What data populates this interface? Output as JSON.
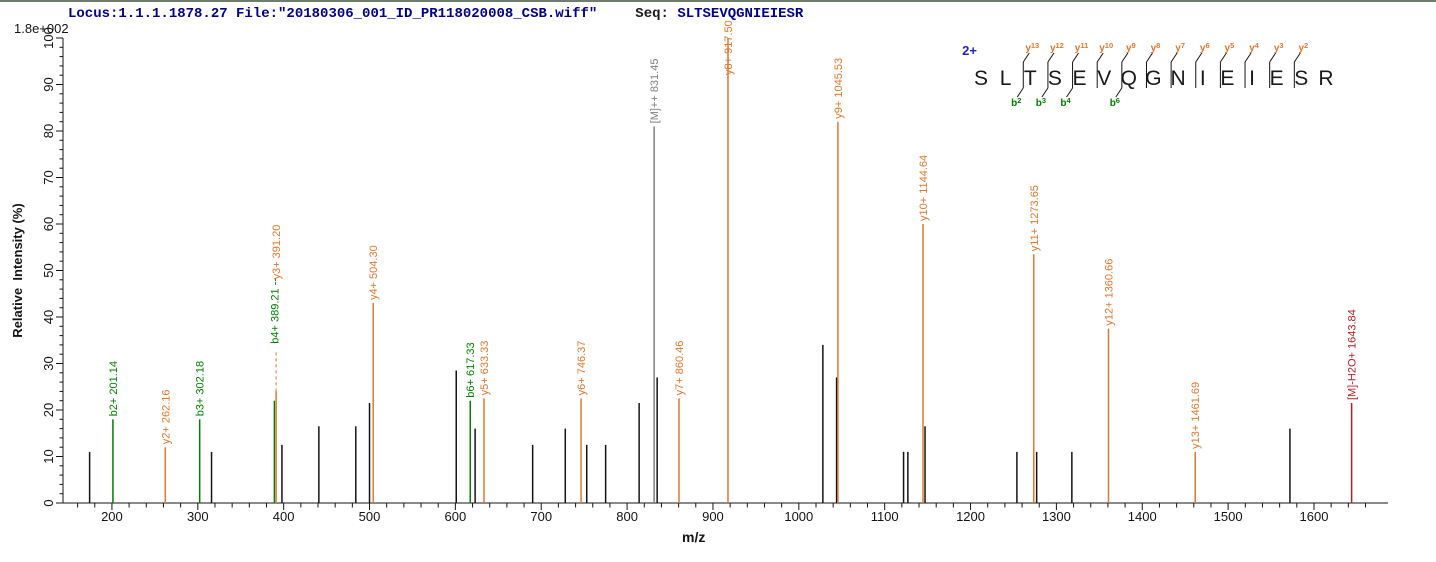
{
  "header": {
    "locus_file": "Locus:1.1.1.1878.27 File:\"20180306_001_ID_PR118020008_CSB.wiff\"",
    "seq_label": "Seq:",
    "sequence": "SLTSEVQGNIEIESR"
  },
  "colors": {
    "y": "#e2772e",
    "b": "#008000",
    "unassigned": "#141414",
    "precursor": "#7f7f7f",
    "neutral_loss": "#b22222",
    "axis": "#141414",
    "header_text": "#00008b",
    "charge": "#1f1fd0"
  },
  "chart_data": {
    "type": "bar",
    "subtype": "ms2-fragment-spectrum",
    "title": "",
    "x_axis": {
      "label": "m/z",
      "range": [
        143,
        1684
      ],
      "major_ticks": [
        200,
        300,
        400,
        500,
        600,
        700,
        800,
        900,
        1000,
        1100,
        1200,
        1300,
        1400,
        1500,
        1600
      ],
      "minor_step": 20,
      "minor_ticks_range": [
        160,
        1660
      ]
    },
    "y_axis": {
      "label": "Relative  Intensity (%)",
      "range": [
        0,
        100
      ],
      "major_ticks": [
        0,
        10,
        20,
        30,
        40,
        50,
        60,
        70,
        80,
        90,
        100
      ],
      "minor_step": 2,
      "scale_note": "1.8e+002"
    },
    "peaks": [
      {
        "mz": 174,
        "intensity": 11,
        "type": "unassigned"
      },
      {
        "mz": 201.14,
        "intensity": 18,
        "type": "b",
        "label": "b2+ 201.14"
      },
      {
        "mz": 262.16,
        "intensity": 12,
        "type": "y",
        "label": "y2+ 262.16"
      },
      {
        "mz": 302.18,
        "intensity": 18,
        "type": "b",
        "label": "b3+ 302.18"
      },
      {
        "mz": 316,
        "intensity": 11,
        "type": "unassigned"
      },
      {
        "mz": 389.21,
        "intensity": 22,
        "type": "b",
        "label": "b4+ 389.21 --",
        "label_offset": 57
      },
      {
        "mz": 391.2,
        "intensity": 24,
        "type": "y",
        "label": "y3+ 391.20",
        "label_offset": 112,
        "leader": [
          0,
          40
        ]
      },
      {
        "mz": 398,
        "intensity": 12.5,
        "type": "unassigned"
      },
      {
        "mz": 441,
        "intensity": 16.5,
        "type": "unassigned"
      },
      {
        "mz": 484,
        "intensity": 16.5,
        "type": "unassigned"
      },
      {
        "mz": 500,
        "intensity": 21.5,
        "type": "unassigned"
      },
      {
        "mz": 504.3,
        "intensity": 43,
        "type": "y",
        "label": "y4+ 504.30"
      },
      {
        "mz": 601,
        "intensity": 28.5,
        "type": "unassigned"
      },
      {
        "mz": 617.33,
        "intensity": 22,
        "type": "b",
        "label": "b6+ 617.33"
      },
      {
        "mz": 623,
        "intensity": 16,
        "type": "unassigned"
      },
      {
        "mz": 633.33,
        "intensity": 22.5,
        "type": "y",
        "label": "y5+ 633.33"
      },
      {
        "mz": 690,
        "intensity": 12.5,
        "type": "unassigned"
      },
      {
        "mz": 728,
        "intensity": 16,
        "type": "unassigned"
      },
      {
        "mz": 746.37,
        "intensity": 22.5,
        "type": "y",
        "label": "y6+ 746.37"
      },
      {
        "mz": 753,
        "intensity": 12.5,
        "type": "unassigned"
      },
      {
        "mz": 775,
        "intensity": 12.5,
        "type": "unassigned"
      },
      {
        "mz": 814,
        "intensity": 21.5,
        "type": "unassigned"
      },
      {
        "mz": 831.45,
        "intensity": 81,
        "type": "precursor",
        "label": "[M]++ 831.45"
      },
      {
        "mz": 835,
        "intensity": 27,
        "type": "unassigned"
      },
      {
        "mz": 860.46,
        "intensity": 22.5,
        "type": "y",
        "label": "y7+ 860.46"
      },
      {
        "mz": 917.5,
        "intensity": 100,
        "type": "y",
        "label": "y8+ 917.50",
        "label_offset": -37
      },
      {
        "mz": 1028,
        "intensity": 34,
        "type": "unassigned"
      },
      {
        "mz": 1044,
        "intensity": 27,
        "type": "unassigned"
      },
      {
        "mz": 1045.53,
        "intensity": 82,
        "type": "y",
        "label": "y9+ 1045.53"
      },
      {
        "mz": 1122,
        "intensity": 11,
        "type": "unassigned"
      },
      {
        "mz": 1127,
        "intensity": 11,
        "type": "unassigned"
      },
      {
        "mz": 1144.64,
        "intensity": 60,
        "type": "y",
        "label": "y10+ 1144.64"
      },
      {
        "mz": 1147,
        "intensity": 16.5,
        "type": "unassigned"
      },
      {
        "mz": 1254,
        "intensity": 11,
        "type": "unassigned"
      },
      {
        "mz": 1273.65,
        "intensity": 53.5,
        "type": "y",
        "label": "y11+ 1273.65"
      },
      {
        "mz": 1277,
        "intensity": 11,
        "type": "unassigned"
      },
      {
        "mz": 1318,
        "intensity": 11,
        "type": "unassigned"
      },
      {
        "mz": 1360.66,
        "intensity": 37.5,
        "type": "y",
        "label": "y12+ 1360.66"
      },
      {
        "mz": 1461.69,
        "intensity": 11,
        "type": "y",
        "label": "y13+ 1461.69"
      },
      {
        "mz": 1572,
        "intensity": 16,
        "type": "unassigned"
      },
      {
        "mz": 1643.84,
        "intensity": 21.5,
        "type": "neutral_loss",
        "label": "[M]-H2O+ 1643.84"
      }
    ],
    "fragment_map": {
      "charge_label": "2+",
      "residues": [
        "S",
        "L",
        "T",
        "S",
        "E",
        "V",
        "Q",
        "G",
        "N",
        "I",
        "E",
        "I",
        "E",
        "S",
        "R"
      ],
      "cleavages": [
        {
          "after": 2,
          "y_ion": "y13",
          "b_ion": "b2"
        },
        {
          "after": 3,
          "y_ion": "y12",
          "b_ion": "b3"
        },
        {
          "after": 4,
          "y_ion": "y11",
          "b_ion": "b4"
        },
        {
          "after": 5,
          "y_ion": "y10",
          "b_ion": null
        },
        {
          "after": 6,
          "y_ion": "y9",
          "b_ion": "b6"
        },
        {
          "after": 7,
          "y_ion": "y8",
          "b_ion": null
        },
        {
          "after": 8,
          "y_ion": "y7",
          "b_ion": null
        },
        {
          "after": 9,
          "y_ion": "y6",
          "b_ion": null
        },
        {
          "after": 10,
          "y_ion": "y5",
          "b_ion": null
        },
        {
          "after": 11,
          "y_ion": "y4",
          "b_ion": null
        },
        {
          "after": 12,
          "y_ion": "y3",
          "b_ion": null
        },
        {
          "after": 13,
          "y_ion": "y2",
          "b_ion": null
        }
      ]
    }
  }
}
